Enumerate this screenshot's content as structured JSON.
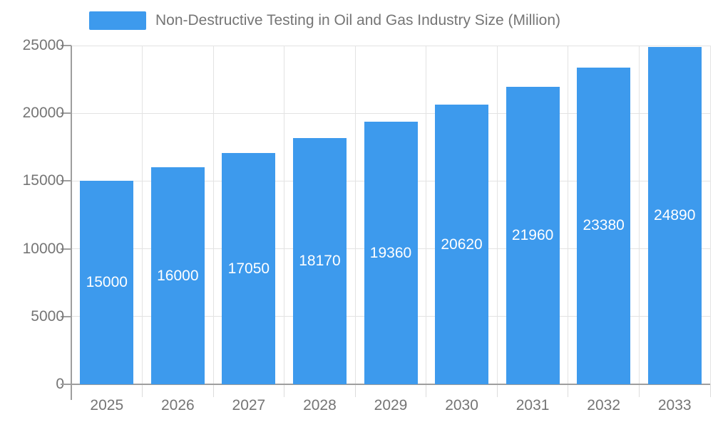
{
  "chart_data": {
    "type": "bar",
    "title": "Non-Destructive Testing in Oil and Gas Industry Size (Million)",
    "categories": [
      "2025",
      "2026",
      "2027",
      "2028",
      "2029",
      "2030",
      "2031",
      "2032",
      "2033"
    ],
    "values": [
      15000,
      16000,
      17050,
      18170,
      19360,
      20620,
      21960,
      23380,
      24890
    ],
    "data_labels": [
      "15000",
      "16000",
      "17050",
      "18170",
      "19360",
      "20620",
      "21960",
      "23380",
      "24890"
    ],
    "xlabel": "",
    "ylabel": "",
    "ylim": [
      0,
      25000
    ],
    "yticks": [
      0,
      5000,
      10000,
      15000,
      20000,
      25000
    ],
    "ytick_labels": [
      "0",
      "5000",
      "10000",
      "15000",
      "20000",
      "25000"
    ],
    "grid": "on",
    "legend_position": "top",
    "colors": {
      "bar": "#3d9aed",
      "bar_label_text": "#ffffff",
      "axis_line": "#9e9e9e",
      "gridline": "#e3e3e3",
      "tick_label_text": "#757575",
      "legend_text": "#757575",
      "background": "#ffffff"
    }
  }
}
